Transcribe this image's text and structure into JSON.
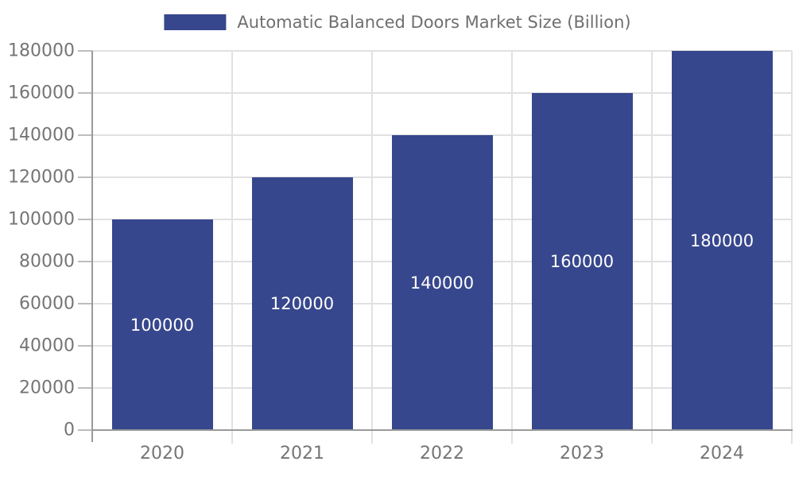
{
  "chart_data": {
    "type": "bar",
    "title": "Automatic Balanced Doors Market Size (Billion)",
    "legend_entries": [
      "Automatic Balanced Doors Market Size (Billion)"
    ],
    "legend_position": "top",
    "categories": [
      "2020",
      "2021",
      "2022",
      "2023",
      "2024"
    ],
    "series": [
      {
        "name": "Automatic Balanced Doors Market Size (Billion)",
        "values": [
          100000,
          120000,
          140000,
          160000,
          180000
        ]
      }
    ],
    "bar_labels": [
      "100000",
      "120000",
      "140000",
      "160000",
      "180000"
    ],
    "xlabel": "",
    "ylabel": "",
    "ylim": [
      0,
      180000
    ],
    "yticks": [
      0,
      20000,
      40000,
      60000,
      80000,
      100000,
      120000,
      140000,
      160000,
      180000
    ],
    "grid": true,
    "colors": {
      "bar": "#37478D",
      "bar_label": "#FFFFFF",
      "grid": "#E1E1E1",
      "axis": "#9A9A9A",
      "tick": "#BDBDBD",
      "tick_label": "#757575",
      "legend_text": "#6F6F6F",
      "background": "#FFFFFF"
    }
  }
}
